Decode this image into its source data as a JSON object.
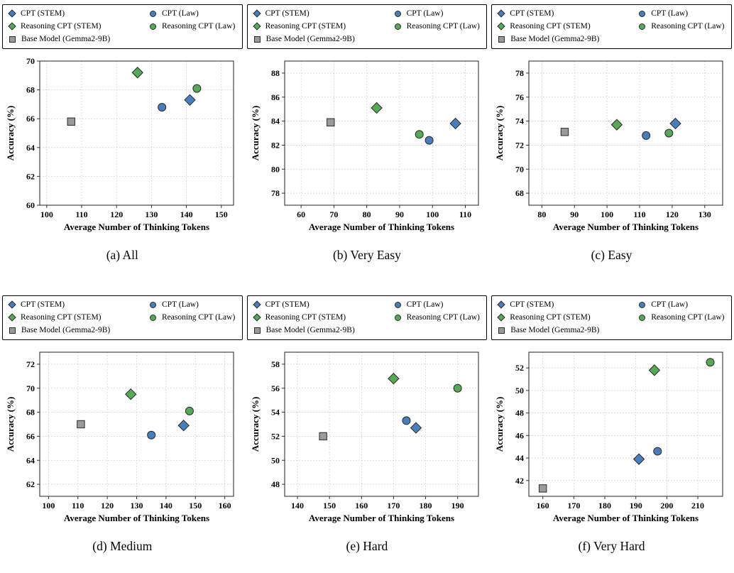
{
  "legend": {
    "items": [
      {
        "label": "CPT (STEM)",
        "marker": "diamond",
        "color": "#4a7dbb"
      },
      {
        "label": "Reasoning CPT (STEM)",
        "marker": "diamond",
        "color": "#57a857"
      },
      {
        "label": "Base Model (Gemma2-9B)",
        "marker": "square",
        "color": "#9a9a9a"
      },
      {
        "label": "CPT (Law)",
        "marker": "circle",
        "color": "#4a7dbb"
      },
      {
        "label": "Reasoning CPT (Law)",
        "marker": "circle",
        "color": "#57a857"
      }
    ]
  },
  "chart_data": [
    {
      "type": "scatter",
      "caption": "(a) All",
      "xlabel": "Average Number of Thinking Tokens",
      "ylabel": "Accuracy (%)",
      "xlim": [
        98,
        153.5
      ],
      "xticks": [
        100,
        110,
        120,
        130,
        140,
        150
      ],
      "ylim": [
        60,
        70
      ],
      "yticks": [
        60,
        62,
        64,
        66,
        68,
        70
      ],
      "grid": true,
      "legend_position": "top",
      "series": [
        {
          "name": "Base Model (Gemma2-9B)",
          "marker": "square",
          "color": "#9a9a9a",
          "points": [
            [
              107,
              65.8
            ]
          ]
        },
        {
          "name": "CPT (Law)",
          "marker": "circle",
          "color": "#4a7dbb",
          "points": [
            [
              133,
              66.8
            ]
          ]
        },
        {
          "name": "Reasoning CPT (Law)",
          "marker": "circle",
          "color": "#57a857",
          "points": [
            [
              143,
              68.1
            ]
          ]
        },
        {
          "name": "Reasoning CPT (STEM)",
          "marker": "diamond",
          "color": "#57a857",
          "points": [
            [
              126,
              69.2
            ]
          ]
        },
        {
          "name": "CPT (STEM)",
          "marker": "diamond",
          "color": "#4a7dbb",
          "points": [
            [
              141,
              67.3
            ]
          ]
        }
      ]
    },
    {
      "type": "scatter",
      "caption": "(b) Very Easy",
      "xlabel": "Average Number of Thinking Tokens",
      "ylabel": "Accuracy (%)",
      "xlim": [
        55,
        114
      ],
      "xticks": [
        60,
        70,
        80,
        90,
        100,
        110
      ],
      "ylim": [
        77,
        89
      ],
      "yticks": [
        78,
        80,
        82,
        84,
        86,
        88
      ],
      "grid": true,
      "legend_position": "top",
      "series": [
        {
          "name": "Base Model (Gemma2-9B)",
          "marker": "square",
          "color": "#9a9a9a",
          "points": [
            [
              69,
              83.9
            ]
          ]
        },
        {
          "name": "CPT (Law)",
          "marker": "circle",
          "color": "#4a7dbb",
          "points": [
            [
              99,
              82.4
            ]
          ]
        },
        {
          "name": "Reasoning CPT (Law)",
          "marker": "circle",
          "color": "#57a857",
          "points": [
            [
              96,
              82.9
            ]
          ]
        },
        {
          "name": "Reasoning CPT (STEM)",
          "marker": "diamond",
          "color": "#57a857",
          "points": [
            [
              83,
              85.1
            ]
          ]
        },
        {
          "name": "CPT (STEM)",
          "marker": "diamond",
          "color": "#4a7dbb",
          "points": [
            [
              107,
              83.8
            ]
          ]
        }
      ]
    },
    {
      "type": "scatter",
      "caption": "(c) Easy",
      "xlabel": "Average Number of Thinking Tokens",
      "ylabel": "Accuracy (%)",
      "xlim": [
        76,
        135.5
      ],
      "xticks": [
        80,
        90,
        100,
        110,
        120,
        130
      ],
      "ylim": [
        67,
        79
      ],
      "yticks": [
        68,
        70,
        72,
        74,
        76,
        78
      ],
      "grid": true,
      "legend_position": "top",
      "series": [
        {
          "name": "Base Model (Gemma2-9B)",
          "marker": "square",
          "color": "#9a9a9a",
          "points": [
            [
              87,
              73.1
            ]
          ]
        },
        {
          "name": "CPT (Law)",
          "marker": "circle",
          "color": "#4a7dbb",
          "points": [
            [
              112,
              72.8
            ]
          ]
        },
        {
          "name": "Reasoning CPT (Law)",
          "marker": "circle",
          "color": "#57a857",
          "points": [
            [
              119,
              73.0
            ]
          ]
        },
        {
          "name": "Reasoning CPT (STEM)",
          "marker": "diamond",
          "color": "#57a857",
          "points": [
            [
              103,
              73.7
            ]
          ]
        },
        {
          "name": "CPT (STEM)",
          "marker": "diamond",
          "color": "#4a7dbb",
          "points": [
            [
              121,
              73.8
            ]
          ]
        }
      ]
    },
    {
      "type": "scatter",
      "caption": "(d) Medium",
      "xlabel": "Average Number of Thinking Tokens",
      "ylabel": "Accuracy (%)",
      "xlim": [
        97,
        163
      ],
      "xticks": [
        100,
        110,
        120,
        130,
        140,
        150,
        160
      ],
      "ylim": [
        61,
        73
      ],
      "yticks": [
        62,
        64,
        66,
        68,
        70,
        72
      ],
      "grid": true,
      "legend_position": "top",
      "series": [
        {
          "name": "Base Model (Gemma2-9B)",
          "marker": "square",
          "color": "#9a9a9a",
          "points": [
            [
              111,
              67.0
            ]
          ]
        },
        {
          "name": "CPT (Law)",
          "marker": "circle",
          "color": "#4a7dbb",
          "points": [
            [
              135,
              66.1
            ]
          ]
        },
        {
          "name": "Reasoning CPT (Law)",
          "marker": "circle",
          "color": "#57a857",
          "points": [
            [
              148,
              68.1
            ]
          ]
        },
        {
          "name": "Reasoning CPT (STEM)",
          "marker": "diamond",
          "color": "#57a857",
          "points": [
            [
              128,
              69.5
            ]
          ]
        },
        {
          "name": "CPT (STEM)",
          "marker": "diamond",
          "color": "#4a7dbb",
          "points": [
            [
              146,
              66.9
            ]
          ]
        }
      ]
    },
    {
      "type": "scatter",
      "caption": "(e) Hard",
      "xlabel": "Average Number of Thinking Tokens",
      "ylabel": "Accuracy (%)",
      "xlim": [
        136,
        196.5
      ],
      "xticks": [
        140,
        150,
        160,
        170,
        180,
        190
      ],
      "ylim": [
        47,
        59
      ],
      "yticks": [
        48,
        50,
        52,
        54,
        56,
        58
      ],
      "grid": true,
      "legend_position": "top",
      "series": [
        {
          "name": "Base Model (Gemma2-9B)",
          "marker": "square",
          "color": "#9a9a9a",
          "points": [
            [
              148,
              52.0
            ]
          ]
        },
        {
          "name": "CPT (Law)",
          "marker": "circle",
          "color": "#4a7dbb",
          "points": [
            [
              174,
              53.3
            ]
          ]
        },
        {
          "name": "Reasoning CPT (Law)",
          "marker": "circle",
          "color": "#57a857",
          "points": [
            [
              190,
              56.0
            ]
          ]
        },
        {
          "name": "Reasoning CPT (STEM)",
          "marker": "diamond",
          "color": "#57a857",
          "points": [
            [
              170,
              56.8
            ]
          ]
        },
        {
          "name": "CPT (STEM)",
          "marker": "diamond",
          "color": "#4a7dbb",
          "points": [
            [
              177,
              52.7
            ]
          ]
        }
      ]
    },
    {
      "type": "scatter",
      "caption": "(f) Very Hard",
      "xlabel": "Average Number of Thinking Tokens",
      "ylabel": "Accuracy (%)",
      "xlim": [
        155.5,
        218
      ],
      "xticks": [
        160,
        170,
        180,
        190,
        200,
        210
      ],
      "ylim": [
        40.6,
        53.4
      ],
      "yticks": [
        42,
        44,
        46,
        48,
        50,
        52
      ],
      "grid": true,
      "legend_position": "top",
      "series": [
        {
          "name": "Base Model (Gemma2-9B)",
          "marker": "square",
          "color": "#9a9a9a",
          "points": [
            [
              160,
              41.3
            ]
          ]
        },
        {
          "name": "CPT (Law)",
          "marker": "circle",
          "color": "#4a7dbb",
          "points": [
            [
              197,
              44.6
            ]
          ]
        },
        {
          "name": "Reasoning CPT (Law)",
          "marker": "circle",
          "color": "#57a857",
          "points": [
            [
              214,
              52.5
            ]
          ]
        },
        {
          "name": "Reasoning CPT (STEM)",
          "marker": "diamond",
          "color": "#57a857",
          "points": [
            [
              196,
              51.8
            ]
          ]
        },
        {
          "name": "CPT (STEM)",
          "marker": "diamond",
          "color": "#4a7dbb",
          "points": [
            [
              191,
              43.9
            ]
          ]
        }
      ]
    }
  ]
}
